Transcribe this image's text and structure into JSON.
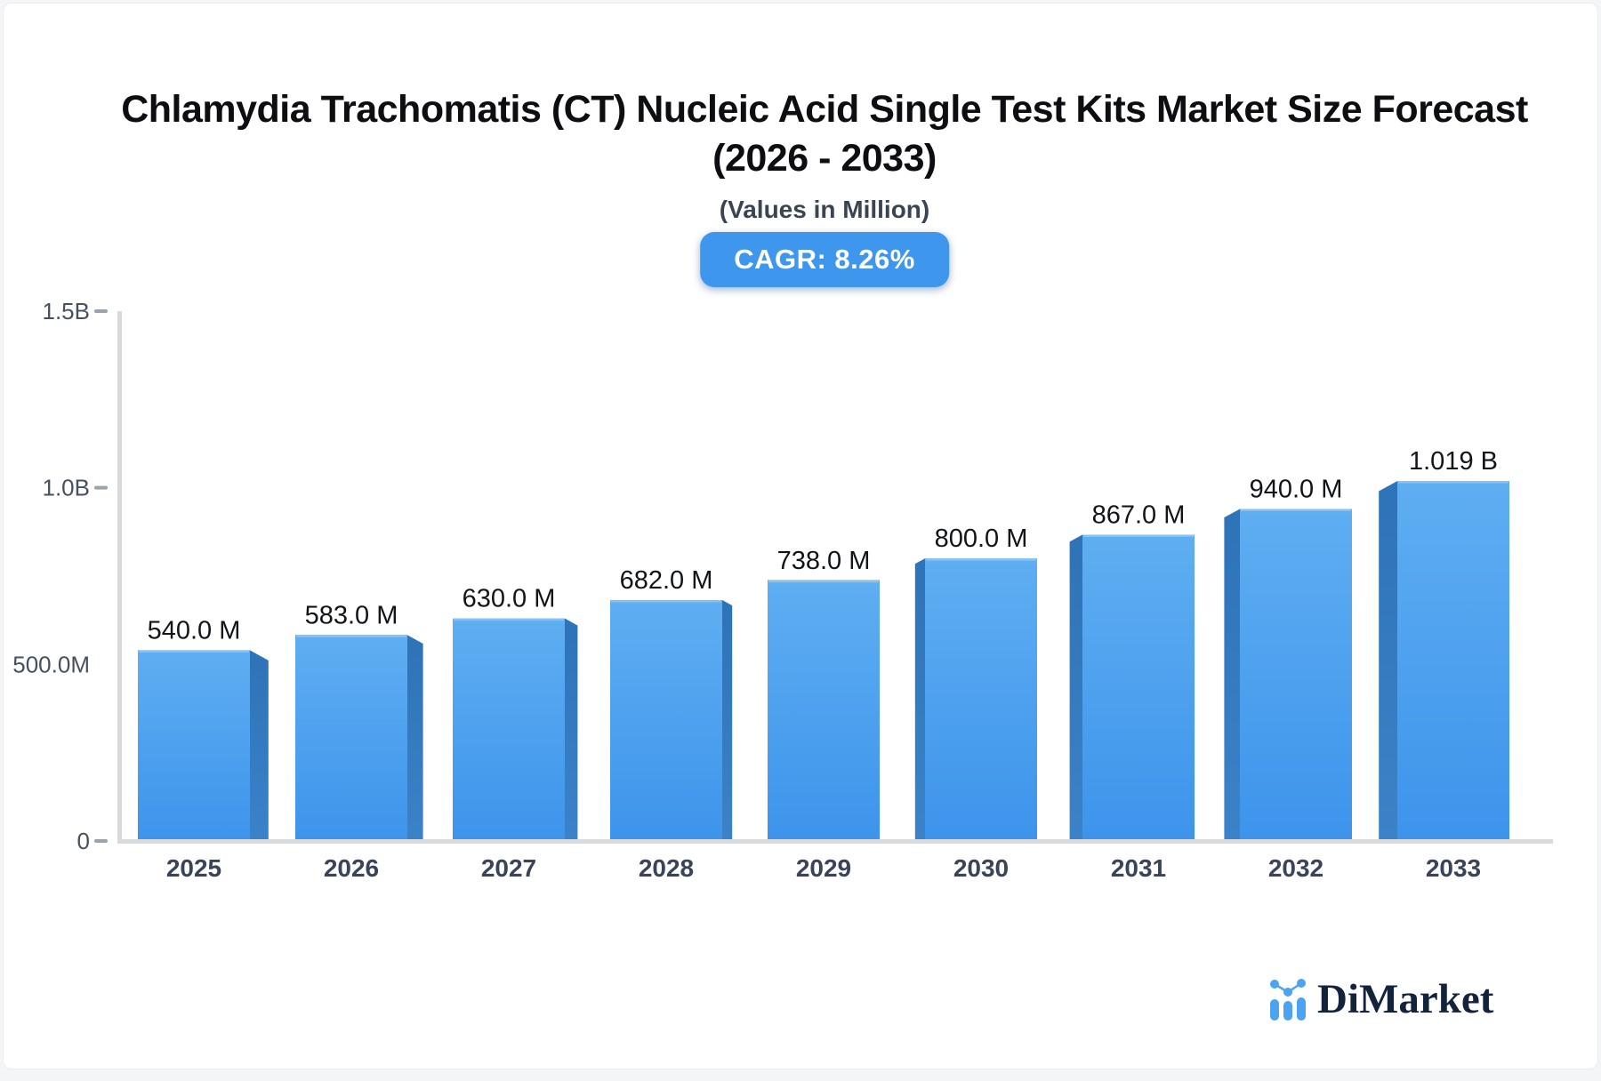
{
  "header": {
    "title_line1": "Chlamydia Trachomatis (CT) Nucleic Acid Single Test Kits Market Size Forecast",
    "title_line2": "(2026 - 2033)",
    "subtitle": "(Values in Million)",
    "cagr_label": "CAGR: 8.26%",
    "cagr_value_pct": 8.26
  },
  "chart_data": {
    "type": "bar",
    "title": "Chlamydia Trachomatis (CT) Nucleic Acid Single Test Kits Market Size Forecast (2026 - 2033)",
    "subtitle": "(Values in Million)",
    "categories": [
      "2025",
      "2026",
      "2027",
      "2028",
      "2029",
      "2030",
      "2031",
      "2032",
      "2033"
    ],
    "values_millions": [
      540,
      583,
      630,
      682,
      738,
      800,
      867,
      940,
      1019
    ],
    "bar_labels": [
      "540.0 M",
      "583.0 M",
      "630.0 M",
      "682.0 M",
      "738.0 M",
      "800.0 M",
      "867.0 M",
      "940.0 M",
      "1.019 B"
    ],
    "xlabel": "",
    "ylabel": "",
    "ylim_millions": [
      0,
      1500
    ],
    "y_ticks": [
      {
        "label": "0",
        "value_millions": 0,
        "dash": true
      },
      {
        "label": "500.0M",
        "value_millions": 500,
        "dash": false
      },
      {
        "label": "1.0B",
        "value_millions": 1000,
        "dash": true
      },
      {
        "label": "1.5B",
        "value_millions": 1500,
        "dash": true
      }
    ],
    "grid": false,
    "legend": false,
    "bar_style": "pseudo-3d, depth side faces toward chart center"
  },
  "colors": {
    "accent_blue": "#3e96ed",
    "bar_face_top": "#5faef2",
    "bar_face_bottom": "#3d94eb",
    "bar_face_highlight": "#8cc6f7",
    "bar_side_top": "#2e73b7",
    "bar_side_bottom": "#3b82c8",
    "axis_line": "#d8dadc",
    "tick_dash": "#9aa2ac",
    "tick_text": "#46505f",
    "value_label_text": "#111419",
    "year_label_text": "#39445a",
    "brand_navy": "#14233c",
    "brand_blue": "#4ba3f1"
  },
  "footer": {
    "brand": "DiMarket"
  }
}
